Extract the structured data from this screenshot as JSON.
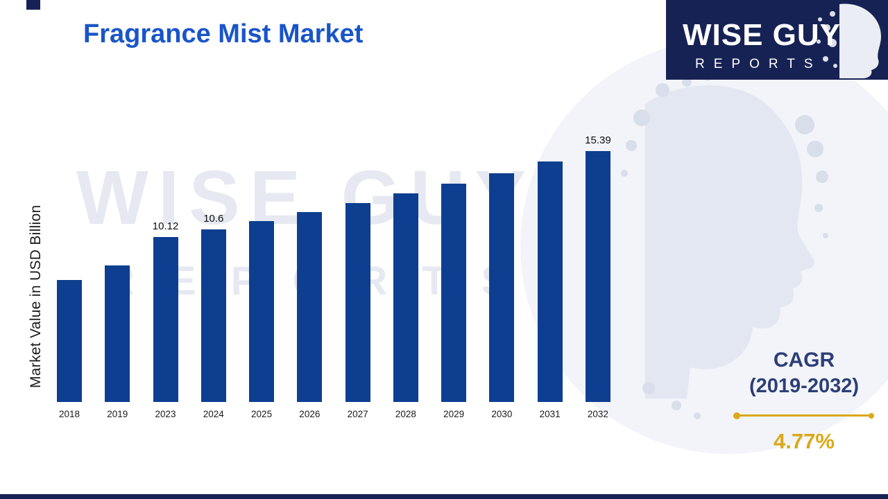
{
  "colors": {
    "bar": "#0d3e90",
    "title": "#1955c8",
    "navy": "#172254",
    "gold": "#dba818",
    "watermark": "#e6e9f1"
  },
  "chart_data": {
    "type": "bar",
    "title": "Fragrance Mist Market",
    "ylabel": "Market Value in USD Billion",
    "categories": [
      "2018",
      "2019",
      "2023",
      "2024",
      "2025",
      "2026",
      "2027",
      "2028",
      "2029",
      "2030",
      "2031",
      "2032"
    ],
    "values": [
      7.5,
      8.4,
      10.12,
      10.6,
      11.1,
      11.65,
      12.2,
      12.8,
      13.4,
      14.05,
      14.75,
      15.39
    ],
    "data_labels": [
      "",
      "",
      "10.12",
      "10.6",
      "",
      "",
      "",
      "",
      "",
      "",
      "",
      "15.39"
    ],
    "unit": "USD Billion",
    "ylim": [
      0,
      16
    ],
    "grid": false,
    "legend": false,
    "bar_color": "#0d3e90"
  },
  "watermark": {
    "line1": "WISE GUY",
    "line2": "REPORTS"
  },
  "logo": {
    "line1": "WISE GUY",
    "line2": "REPORTS"
  },
  "cagr": {
    "heading": "CAGR",
    "range": "(2019-2032)",
    "value": "4.77%"
  }
}
